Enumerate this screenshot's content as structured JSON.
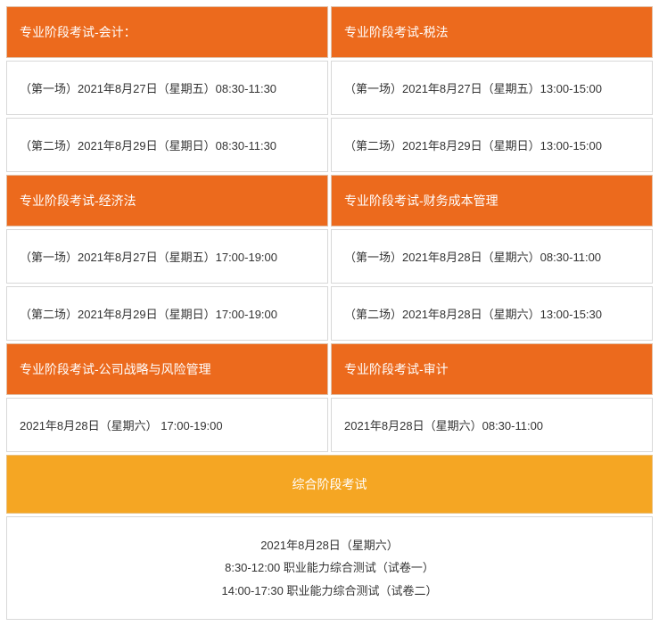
{
  "colors": {
    "orange_header": "#ec6a1d",
    "yellow_header": "#f5a623",
    "white": "#ffffff",
    "text_dark": "#333333",
    "border_light": "#d8d8d8"
  },
  "font": {
    "header_size": 14,
    "data_size": 13
  },
  "sections": [
    {
      "left_header": "专业阶段考试-会计：",
      "right_header": "专业阶段考试-税法",
      "rows": [
        {
          "left": "（第一场）2021年8月27日（星期五）08:30-11:30",
          "right": "（第一场）2021年8月27日（星期五）13:00-15:00"
        },
        {
          "left": "（第二场）2021年8月29日（星期日）08:30-11:30",
          "right": "（第二场）2021年8月29日（星期日）13:00-15:00"
        }
      ]
    },
    {
      "left_header": "专业阶段考试-经济法",
      "right_header": "专业阶段考试-财务成本管理",
      "rows": [
        {
          "left": "（第一场）2021年8月27日（星期五）17:00-19:00",
          "right": "（第一场）2021年8月28日（星期六）08:30-11:00"
        },
        {
          "left": "（第二场）2021年8月29日（星期日）17:00-19:00",
          "right": "（第二场）2021年8月28日（星期六）13:00-15:30"
        }
      ]
    },
    {
      "left_header": "专业阶段考试-公司战略与风险管理",
      "right_header": "专业阶段考试-审计",
      "rows": [
        {
          "left": "2021年8月28日（星期六） 17:00-19:00",
          "right": "2021年8月28日（星期六）08:30-11:00"
        }
      ]
    }
  ],
  "comprehensive": {
    "header": "综合阶段考试",
    "line1": "2021年8月28日（星期六）",
    "line2": "8:30-12:00 职业能力综合测试（试卷一）",
    "line3": "14:00-17:30 职业能力综合测试（试卷二）"
  }
}
